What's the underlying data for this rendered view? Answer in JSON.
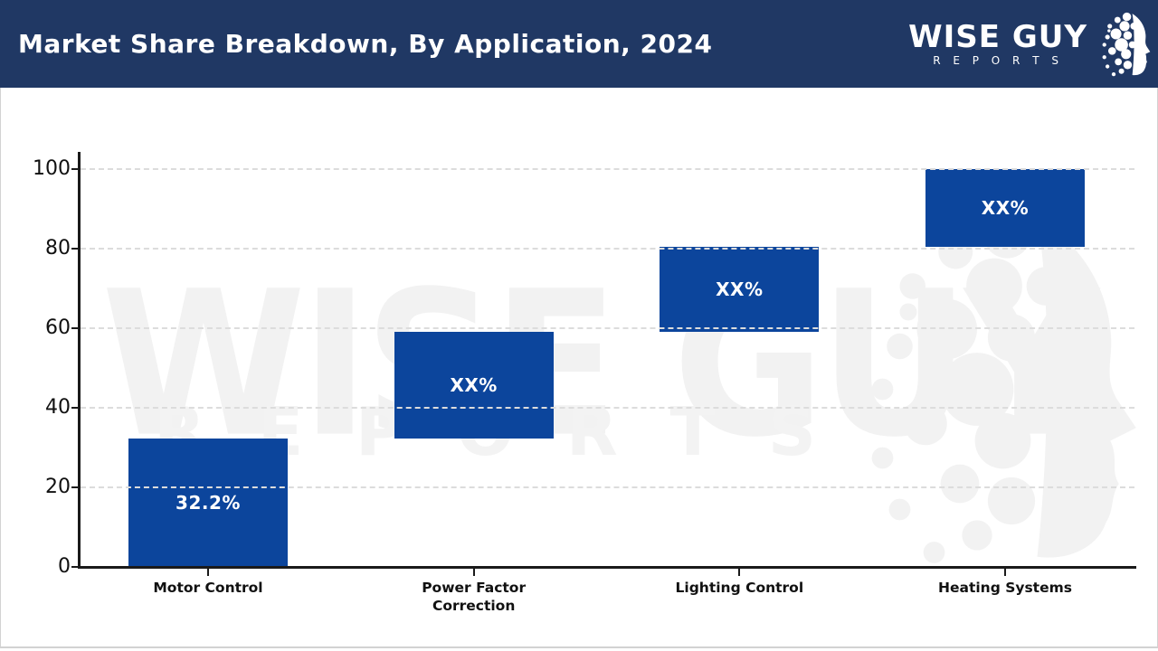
{
  "header": {
    "title": "Market Share Breakdown, By Application, 2024",
    "logo": {
      "name": "WISE GUY",
      "sub": "R E P O R T S"
    }
  },
  "watermark": {
    "name": "WISE GUY",
    "sub": "R E P O R T S"
  },
  "chart_data": {
    "type": "bar",
    "subtype": "waterfall",
    "title": "Market Share Breakdown, By Application, 2024",
    "categories": [
      "Motor Control",
      "Power Factor Correction",
      "Lighting Control",
      "Heating Systems"
    ],
    "segments": [
      {
        "category": "Motor Control",
        "start": 0,
        "end": 32.2,
        "label": "32.2%"
      },
      {
        "category": "Power Factor Correction",
        "start": 32.2,
        "end": 59.1,
        "label": "XX%"
      },
      {
        "category": "Lighting Control",
        "start": 59.1,
        "end": 80.5,
        "label": "XX%"
      },
      {
        "category": "Heating Systems",
        "start": 80.5,
        "end": 100,
        "label": "XX%"
      }
    ],
    "xlabel": "",
    "ylabel": "",
    "ylim": [
      0,
      100
    ],
    "yticks": [
      0,
      20,
      40,
      60,
      80,
      100
    ],
    "grid": "horizontal-dashed",
    "legend": "none",
    "bar_color": "#0C459C",
    "bar_label_color": "#FFFFFF"
  },
  "colors": {
    "header_bg": "#203864",
    "bar": "#0C459C",
    "axis": "#1A1A1A",
    "grid": "#DCDCDC",
    "text": "#111111",
    "watermark": "#F2F2F2",
    "page_bg": "#FFFFFF",
    "border": "#D2D2D2"
  }
}
